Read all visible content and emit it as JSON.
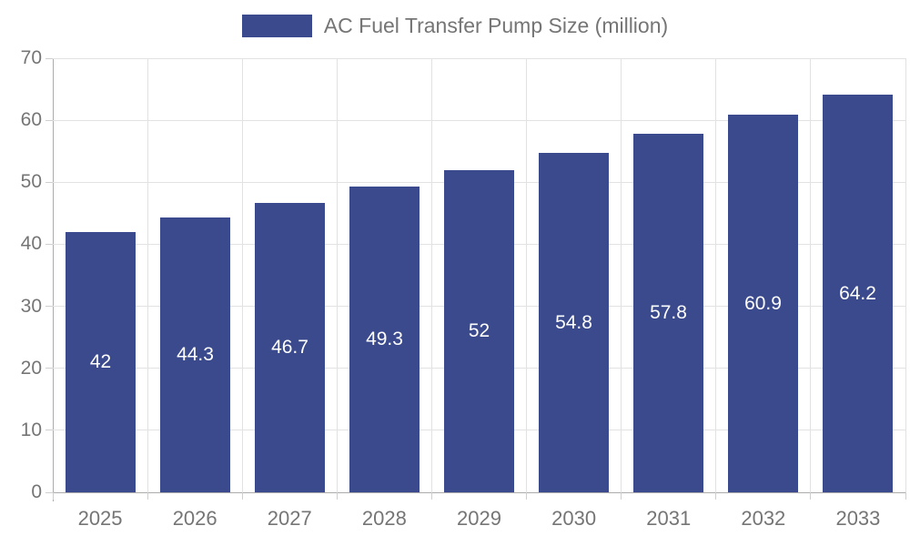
{
  "chart_data": {
    "type": "bar",
    "title": "",
    "legend": {
      "label": "AC Fuel Transfer Pump Size (million)",
      "position": "top"
    },
    "categories": [
      "2025",
      "2026",
      "2027",
      "2028",
      "2029",
      "2030",
      "2031",
      "2032",
      "2033"
    ],
    "values": [
      42,
      44.3,
      46.7,
      49.3,
      52,
      54.8,
      57.8,
      60.9,
      64.2
    ],
    "value_labels": [
      "42",
      "44.3",
      "46.7",
      "49.3",
      "52",
      "54.8",
      "57.8",
      "60.9",
      "64.2"
    ],
    "xlabel": "",
    "ylabel": "",
    "ylim": [
      0,
      70
    ],
    "yticks": [
      0,
      10,
      20,
      30,
      40,
      50,
      60,
      70
    ],
    "grid": true,
    "colors": {
      "bar": "#3A4A8C",
      "value_label": "#FFFFFF",
      "axis_text": "#757575",
      "grid_line": "#E2E2E2",
      "axis_line": "#ABABAB",
      "tick": "#CFCFCF",
      "background": "#FFFFFF"
    }
  }
}
